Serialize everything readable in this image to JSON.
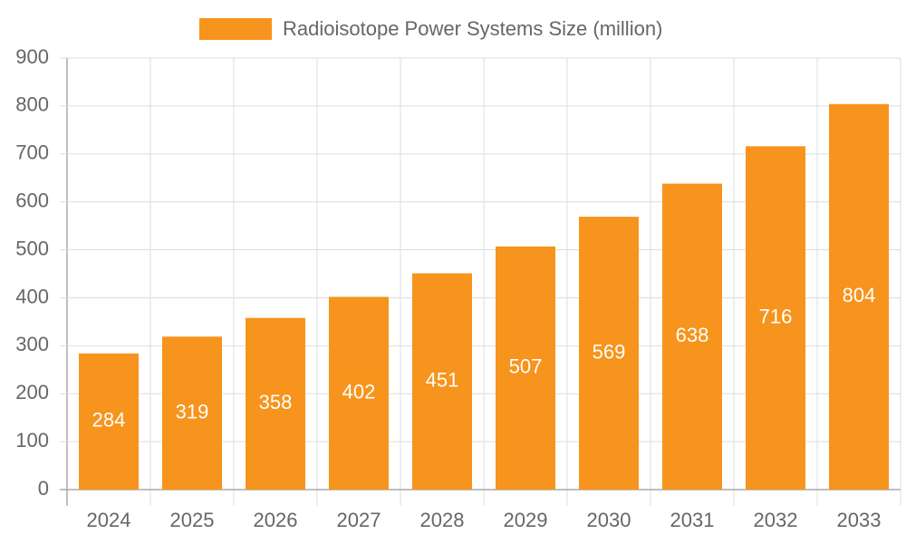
{
  "chart_data": {
    "type": "bar",
    "categories": [
      "2024",
      "2025",
      "2026",
      "2027",
      "2028",
      "2029",
      "2030",
      "2031",
      "2032",
      "2033"
    ],
    "series": [
      {
        "name": "Radioisotope Power Systems Size (million)",
        "color": "#f7941d",
        "values": [
          284,
          319,
          358,
          402,
          451,
          507,
          569,
          638,
          716,
          804
        ]
      }
    ],
    "ylim": [
      0,
      900
    ],
    "yticks": [
      0,
      100,
      200,
      300,
      400,
      500,
      600,
      700,
      800,
      900
    ],
    "grid": true,
    "legend": "top"
  }
}
